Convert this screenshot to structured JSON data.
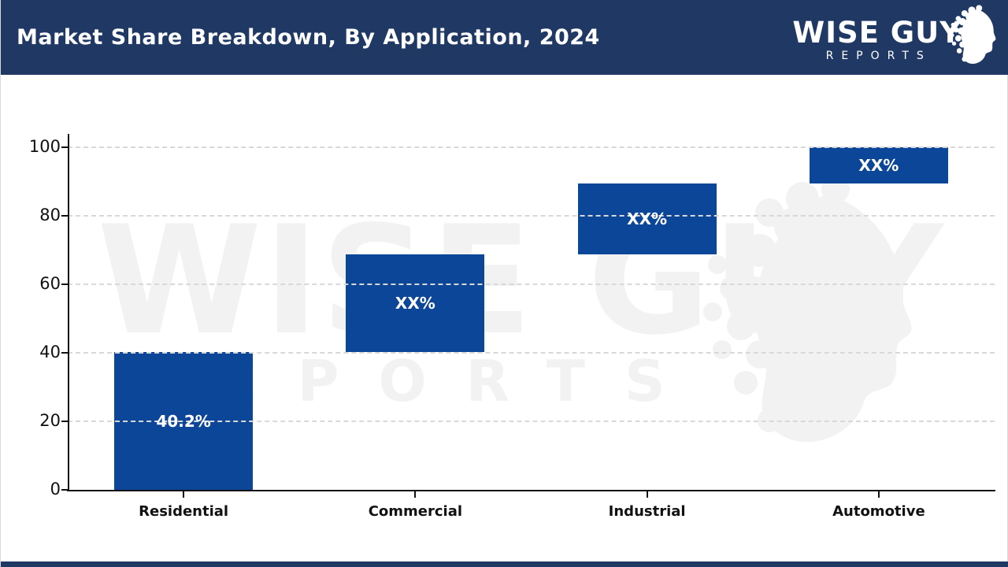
{
  "header": {
    "title": "Market Share Breakdown, By Application, 2024",
    "bg_color": "#203864",
    "logo": {
      "line1": "WISE GUY",
      "line2": "REPORTS"
    }
  },
  "watermark": {
    "line1": "WISE GUY",
    "line2": "REPORTS"
  },
  "footer": {
    "bar_color": "#203864"
  },
  "chart_data": {
    "type": "bar",
    "subtype": "waterfall",
    "title": "Market Share Breakdown, By Application, 2024",
    "categories": [
      "Residential",
      "Commercial",
      "Industrial",
      "Automotive"
    ],
    "segments": [
      {
        "category": "Residential",
        "start": 0,
        "end": 40.2,
        "label": "40.2%"
      },
      {
        "category": "Commercial",
        "start": 40.2,
        "end": 68.8,
        "label": "XX%"
      },
      {
        "category": "Industrial",
        "start": 68.8,
        "end": 89.4,
        "label": "XX%"
      },
      {
        "category": "Automotive",
        "start": 89.4,
        "end": 100,
        "label": "XX%"
      }
    ],
    "yticks": [
      0,
      20,
      40,
      60,
      80,
      100
    ],
    "ylim": [
      0,
      104
    ],
    "grid": "horizontal-dashed-on-top",
    "legend": "none",
    "bar_color": "#0c4699",
    "bar_label_color": "#ffffff",
    "axis_color": "#111111",
    "grid_color": "#d8d8d8"
  }
}
